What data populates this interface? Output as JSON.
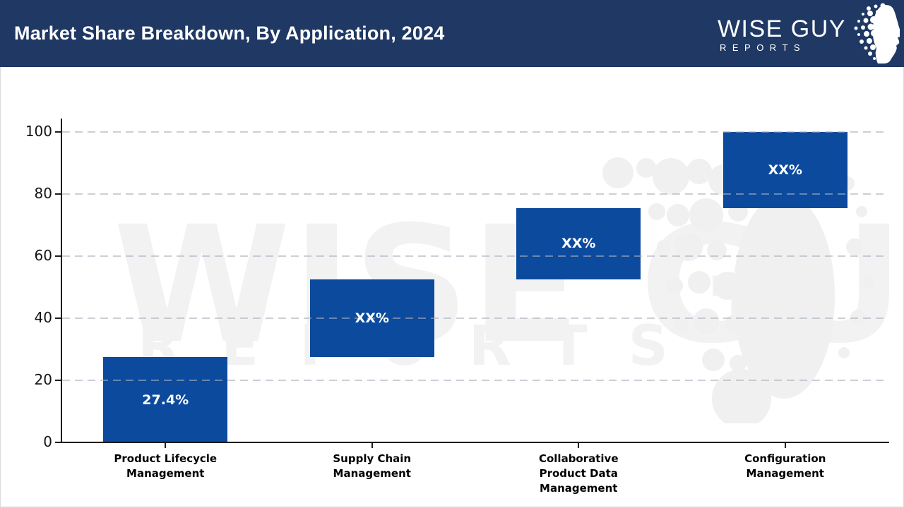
{
  "header": {
    "title": "Market Share Breakdown, By Application, 2024",
    "background_color": "#1f3864",
    "logo": {
      "line1": "WISE GUY",
      "line2": "REPORTS"
    }
  },
  "watermark": {
    "line1": "WISE GUY",
    "line2": "REPORTS"
  },
  "chart_data": {
    "type": "bar",
    "subtype": "floating-waterfall",
    "title": "Market Share Breakdown, By Application, 2024",
    "categories": [
      [
        "Product Lifecycle",
        "Management"
      ],
      [
        "Supply Chain",
        "Management"
      ],
      [
        "Collaborative",
        "Product Data",
        "Management"
      ],
      [
        "Configuration",
        "Management"
      ]
    ],
    "segments": [
      {
        "label": "27.4%",
        "start": 0,
        "end": 27.4
      },
      {
        "label": "XX%",
        "start": 27.4,
        "end": 52.5
      },
      {
        "label": "XX%",
        "start": 52.5,
        "end": 75.5
      },
      {
        "label": "XX%",
        "start": 75.5,
        "end": 100
      }
    ],
    "ylim": [
      0,
      100
    ],
    "yticks": [
      0,
      20,
      40,
      60,
      80,
      100
    ],
    "grid": "horizontal dashed, drawn over bars",
    "legend": "none",
    "bar_color": "#0b4a9d",
    "value_label_color": "#ffffff",
    "axis_color": "#1c1c1c"
  }
}
